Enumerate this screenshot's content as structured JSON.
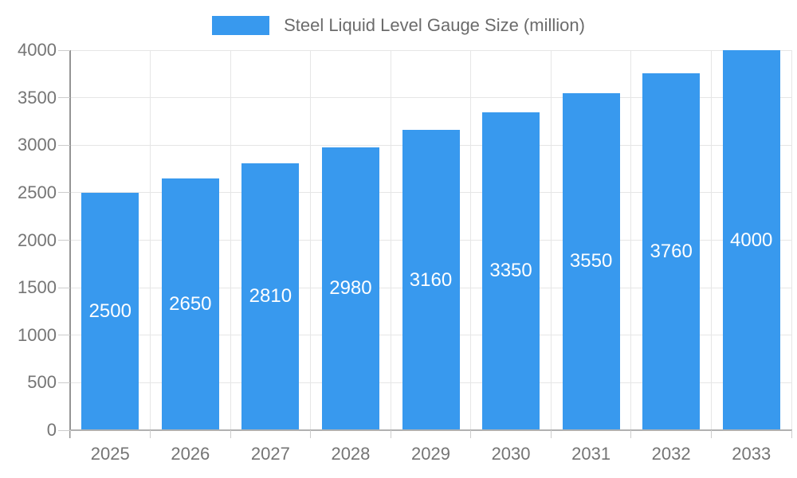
{
  "chart_data": {
    "type": "bar",
    "title": "Steel Liquid Level Gauge Size (million)",
    "categories": [
      "2025",
      "2026",
      "2027",
      "2028",
      "2029",
      "2030",
      "2031",
      "2032",
      "2033"
    ],
    "values": [
      2500,
      2650,
      2810,
      2980,
      3160,
      3350,
      3550,
      3760,
      4000
    ],
    "xlabel": "",
    "ylabel": "",
    "ylim": [
      0,
      4000
    ],
    "yticks": [
      0,
      500,
      1000,
      1500,
      2000,
      2500,
      3000,
      3500,
      4000
    ],
    "grid": true,
    "legend_position": "top",
    "bar_labels_shown": true,
    "colors": {
      "bar": "#3899ee",
      "bar_label": "#ffffff",
      "axis_text": "#757575",
      "legend_text": "#6b6b6b",
      "gridline": "#e6e6e6",
      "y_axis_line": "#949494",
      "x_axis_line": "#b0b0b0",
      "tick": "#cccccc",
      "background": "#ffffff"
    }
  }
}
